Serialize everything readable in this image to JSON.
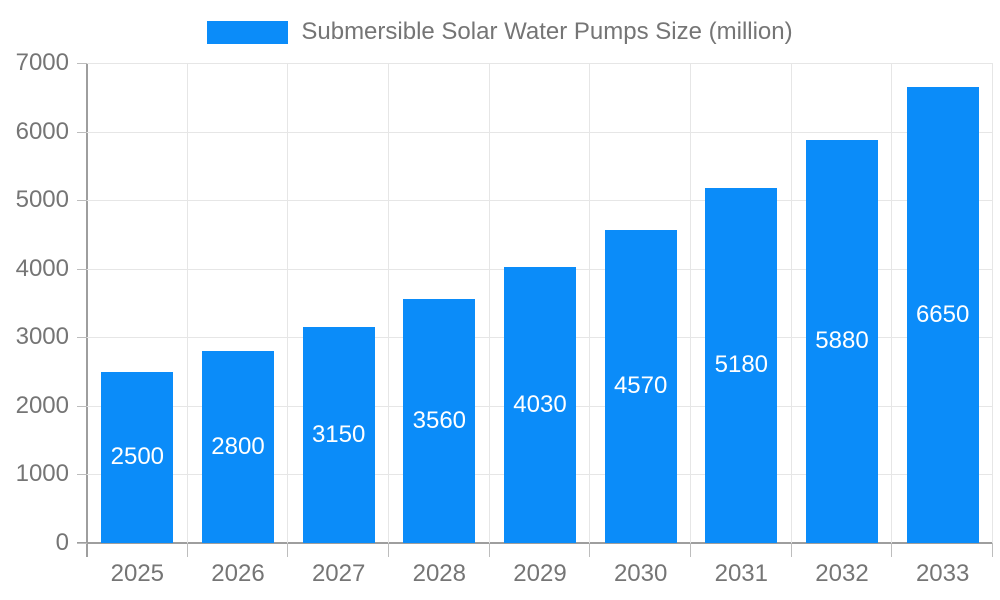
{
  "legend": {
    "label": "Submersible Solar Water Pumps Size (million)"
  },
  "chart_data": {
    "type": "bar",
    "title": "Submersible Solar Water Pumps Size (million)",
    "categories": [
      "2025",
      "2026",
      "2027",
      "2028",
      "2029",
      "2030",
      "2031",
      "2032",
      "2033"
    ],
    "series": [
      {
        "name": "Submersible Solar Water Pumps Size (million)",
        "color": "#0b8cf9",
        "values": [
          2500,
          2800,
          3150,
          3560,
          4030,
          4570,
          5180,
          5880,
          6650
        ]
      }
    ],
    "xlabel": "",
    "ylabel": "",
    "ylim": [
      0,
      7000
    ],
    "ytick_step": 1000,
    "ytick_labels": [
      "0",
      "1000",
      "2000",
      "3000",
      "4000",
      "5000",
      "6000",
      "7000"
    ],
    "grid": true,
    "legend_position": "top",
    "bar_labels_shown": true,
    "bar_label_color": "#ffffff",
    "axis_label_color": "#757575",
    "grid_color": "#e6e6e6",
    "axis_color": "#9e9e9e",
    "tick_color": "#bdbdbd",
    "background_color": "#ffffff"
  }
}
